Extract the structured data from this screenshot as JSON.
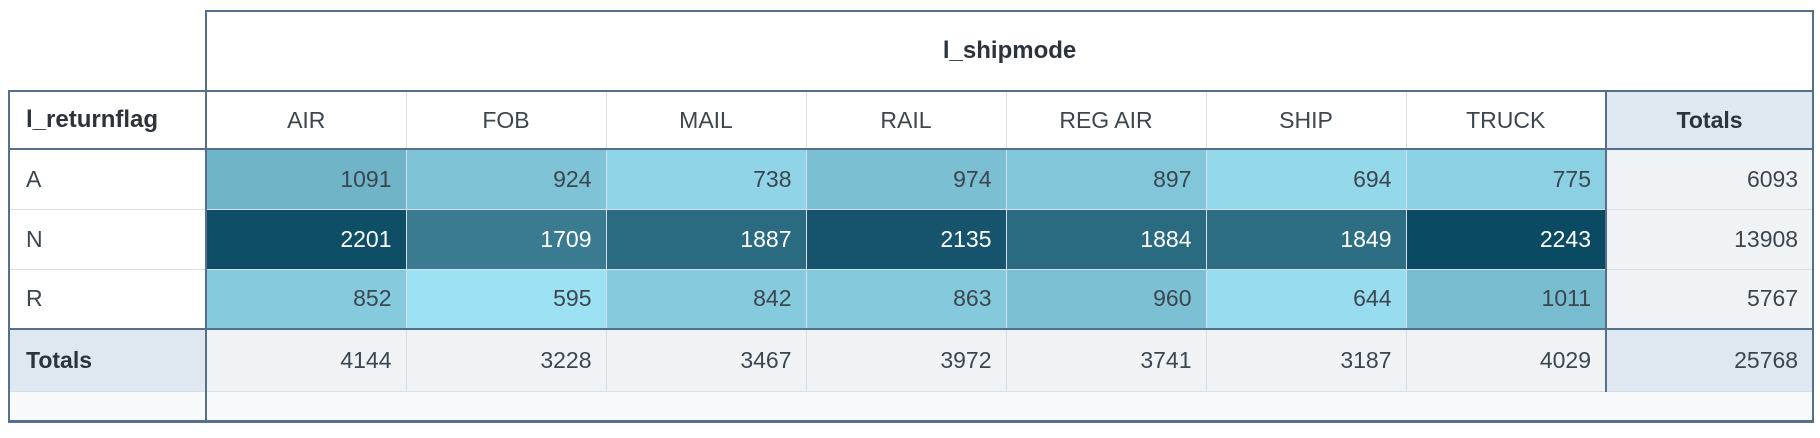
{
  "chart_data": {
    "type": "table",
    "subtype": "pivot-heatmap",
    "column_field": "l_shipmode",
    "row_field": "l_returnflag",
    "columns": [
      "AIR",
      "FOB",
      "MAIL",
      "RAIL",
      "REG AIR",
      "SHIP",
      "TRUCK"
    ],
    "totals_label": "Totals",
    "rows": [
      {
        "label": "A",
        "values": [
          1091,
          924,
          738,
          974,
          897,
          694,
          775
        ],
        "total": 6093
      },
      {
        "label": "N",
        "values": [
          2201,
          1709,
          1887,
          2135,
          1884,
          1849,
          2243
        ],
        "total": 13908
      },
      {
        "label": "R",
        "values": [
          852,
          595,
          842,
          863,
          960,
          644,
          1011
        ],
        "total": 5767
      }
    ],
    "column_totals": [
      4144,
      3228,
      3467,
      3972,
      3741,
      3187,
      4029
    ],
    "grand_total": 25768,
    "heatmap": {
      "min_value": 595,
      "max_value": 2243,
      "min_color": "#9ce2f3",
      "max_color": "#0b4a63",
      "light_text_threshold": 0.55,
      "dark_text_color": "#3c4650",
      "light_text_color": "#ffffff"
    }
  },
  "colors": {
    "border_dark": "#54708c",
    "grid_light": "#d7dfe8",
    "totals_header_bg": "#dfe7f0",
    "totals_cell_bg": "#f0f3f6",
    "bottom_strip_bg": "#f8f9fa",
    "header_text": "#2b333c",
    "value_text": "#3c4650"
  }
}
